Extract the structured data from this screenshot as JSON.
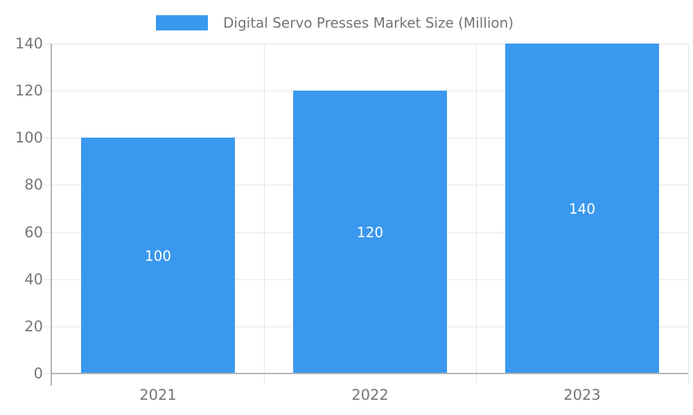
{
  "chart_data": {
    "type": "bar",
    "title": "Digital Servo Presses Market Size (Million)",
    "legend": [
      "Digital Servo Presses Market Size (Million)"
    ],
    "legend_position": "top",
    "categories": [
      "2021",
      "2022",
      "2023"
    ],
    "series": [
      {
        "name": "Digital Servo Presses Market Size (Million)",
        "values": [
          100,
          120,
          140
        ]
      }
    ],
    "data_labels": [
      "100",
      "120",
      "140"
    ],
    "xlabel": "",
    "ylabel": "",
    "ylim": [
      0,
      140
    ],
    "yticks": [
      0,
      20,
      40,
      60,
      80,
      100,
      120,
      140
    ],
    "grid": true,
    "colors": {
      "bar": "#3a99ee",
      "axis_label": "#757575",
      "data_label": "#ffffff",
      "gridline": "#e6e6e6",
      "axis_line": "#b3b3b3",
      "background": "#ffffff"
    }
  }
}
